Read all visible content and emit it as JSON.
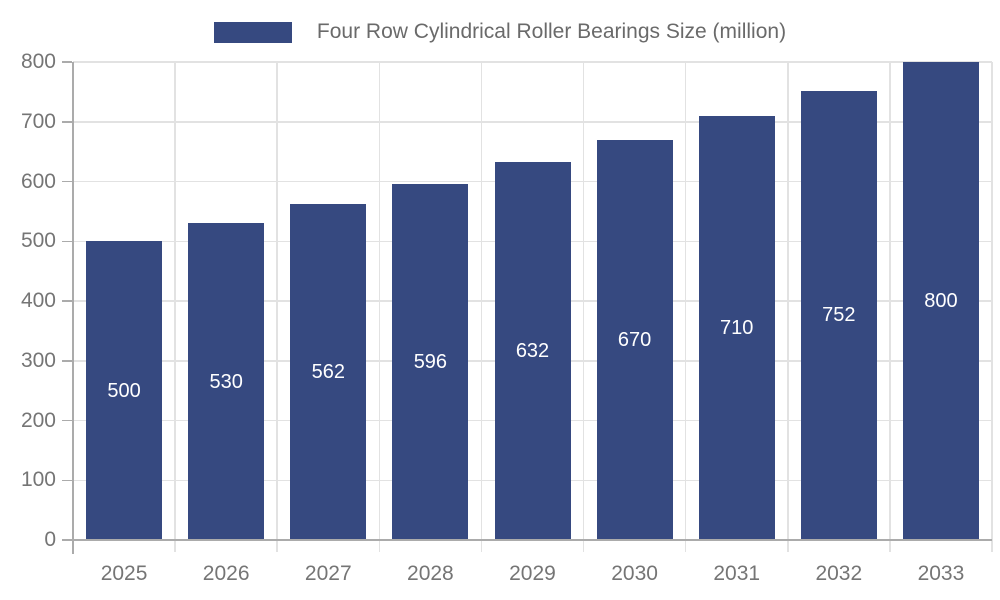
{
  "chart_data": {
    "type": "bar",
    "title": "Four Row Cylindrical Roller Bearings Size (million)",
    "legend_entries": [
      "Four Row Cylindrical Roller Bearings Size (million)"
    ],
    "legend_position": "top-center",
    "categories": [
      "2025",
      "2026",
      "2027",
      "2028",
      "2029",
      "2030",
      "2031",
      "2032",
      "2033"
    ],
    "values": [
      500,
      530,
      562,
      596,
      632,
      670,
      710,
      752,
      800
    ],
    "xlabel": "",
    "ylabel": "",
    "ylim": [
      0,
      800
    ],
    "ytick_step": 100,
    "ytick_labels": [
      "0",
      "100",
      "200",
      "300",
      "400",
      "500",
      "600",
      "700",
      "800"
    ],
    "grid": true,
    "colors": {
      "bar": "#364980",
      "value_label": "#ffffff",
      "axis_line": "#ababab",
      "grid_line": "#e2e2e2",
      "tick_label": "#757575",
      "legend_text": "#6a6a6a",
      "background": "#ffffff"
    }
  }
}
